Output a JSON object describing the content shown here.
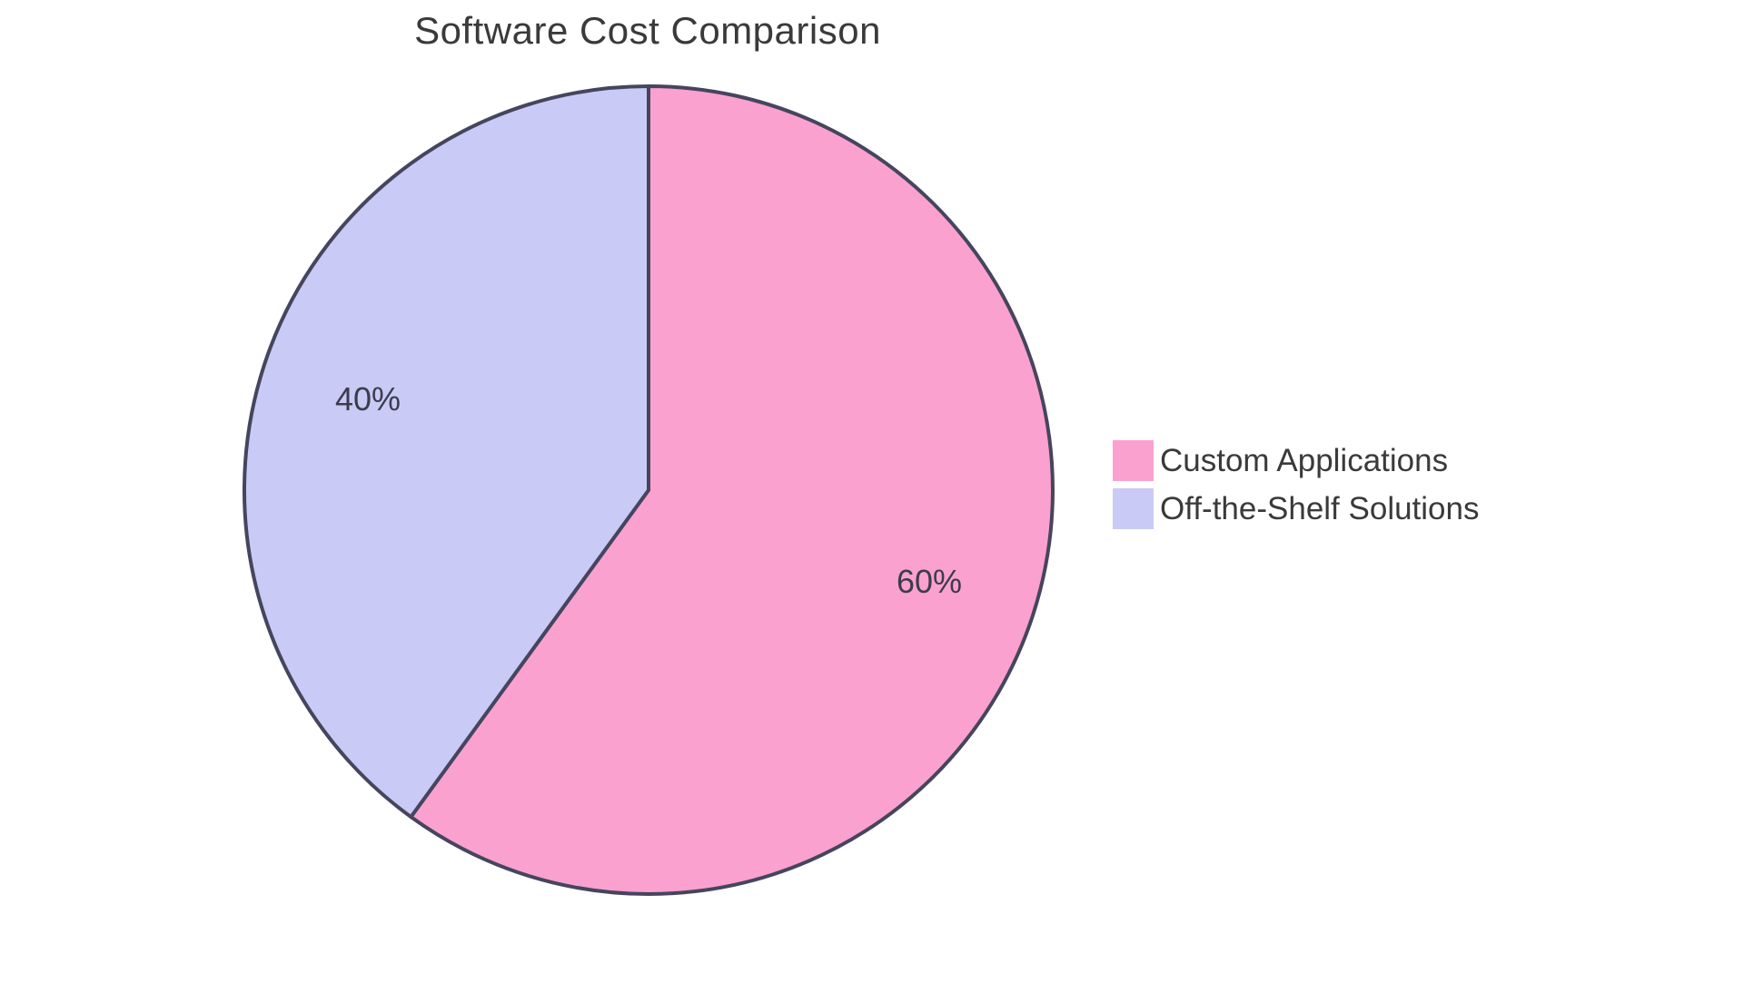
{
  "page": {
    "background": "#FFFFFF"
  },
  "chart_data": {
    "type": "pie",
    "title": "Software Cost Comparison",
    "labels": [
      "Custom Applications",
      "Off-the-Shelf Solutions"
    ],
    "values": [
      60,
      40
    ],
    "percent_labels": [
      "60%",
      "40%"
    ],
    "colors": [
      "#FBA1CF",
      "#C9CAF5"
    ],
    "slice_border_color": "#45455E",
    "slice_border_width": 4,
    "start_angle": "top",
    "direction": "clockwise",
    "legend_position": "right",
    "title_color": "#3A3A3A",
    "legend_text_color": "#3A3A3A",
    "inside_label_color": "#3C3C4C"
  }
}
